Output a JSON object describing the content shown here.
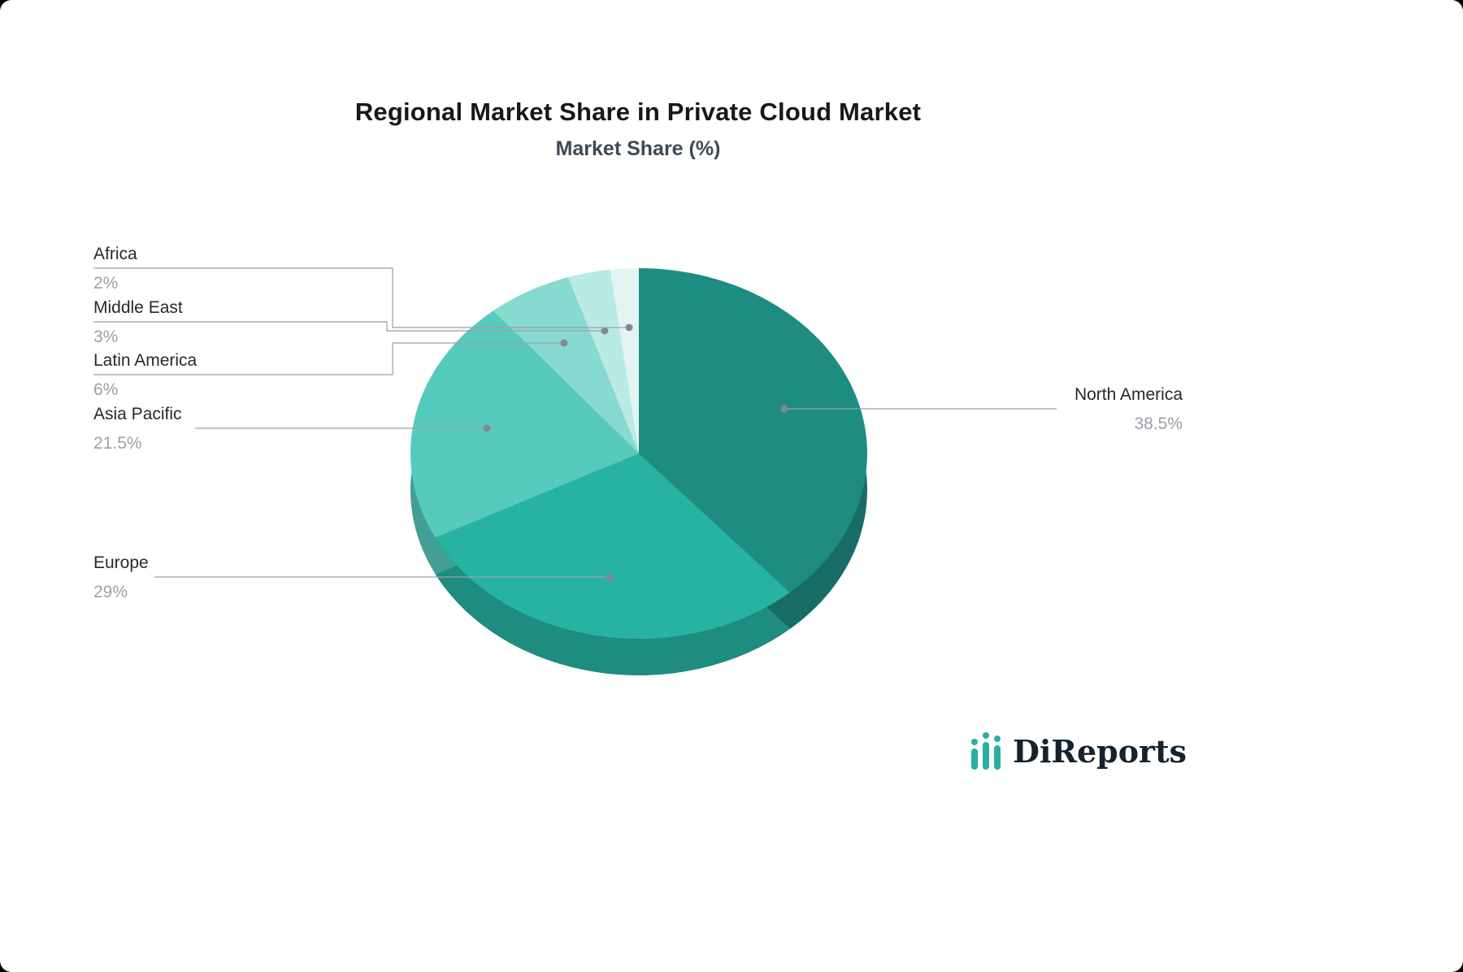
{
  "page": {
    "background": "#ffffff"
  },
  "logo": {
    "text": "DiReports",
    "icon": "bar-chart-icon",
    "icon_color": "#2aaf9f",
    "text_color": "#16222e"
  },
  "chart_data": {
    "type": "pie",
    "title": "Regional Market Share in Private Cloud Market",
    "subtitle": "Market Share (%)",
    "unit": "%",
    "labels": [
      "North America",
      "Europe",
      "Asia Pacific",
      "Latin America",
      "Middle East",
      "Africa"
    ],
    "values": [
      38.5,
      29,
      21.5,
      6,
      3,
      2
    ],
    "display_values": [
      "38.5%",
      "29%",
      "21.5%",
      "6%",
      "3%",
      "2%"
    ],
    "colors": [
      "#1e8c81",
      "#27b3a2",
      "#56cabc",
      "#86dacf",
      "#b9eae3",
      "#e4f5f1"
    ],
    "style": "3d-pie",
    "start_angle_deg": 0,
    "direction": "clockwise",
    "legend_position": "none",
    "label_style": "callout-leader-lines",
    "leader_line_color": "#9ba1a8",
    "name_text_color": "#26292e",
    "value_text_color": "#9ba1a8"
  }
}
